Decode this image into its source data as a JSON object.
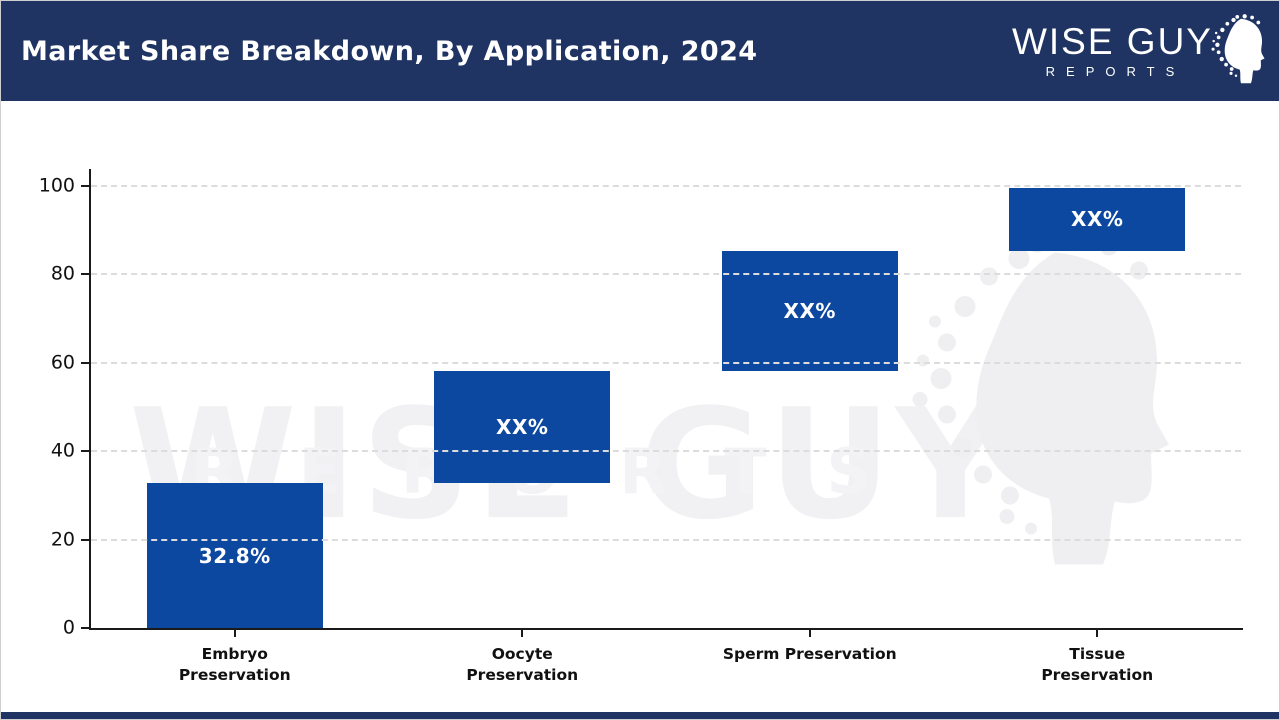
{
  "header": {
    "title": "Market Share Breakdown, By Application, 2024",
    "logo": {
      "name": "WISE GUY",
      "tagline": "REPORTS"
    },
    "background_color": "#1f3463"
  },
  "watermark": {
    "name": "WISE GUY",
    "tagline": "REPORTS"
  },
  "chart_data": {
    "type": "bar",
    "subtype": "waterfall",
    "title": "Market Share Breakdown, By Application, 2024",
    "categories": [
      "Embryo\nPreservation",
      "Oocyte\nPreservation",
      "Sperm Preservation",
      "Tissue\nPreservation"
    ],
    "segments": [
      {
        "category": "Embryo Preservation",
        "start": 0,
        "end": 32.8,
        "label": "32.8%"
      },
      {
        "category": "Oocyte Preservation",
        "start": 32.8,
        "end": 58.2,
        "label": "XX%"
      },
      {
        "category": "Sperm Preservation",
        "start": 58.2,
        "end": 85.3,
        "label": "XX%"
      },
      {
        "category": "Tissue Preservation",
        "start": 85.3,
        "end": 99.6,
        "label": "XX%"
      }
    ],
    "ylim": [
      0,
      100
    ],
    "yticks": [
      0,
      20,
      40,
      60,
      80,
      100
    ],
    "grid": {
      "horizontal": true,
      "style": "dashed",
      "above_bars": true
    },
    "legend": "none",
    "bar_color": "#0d48a0",
    "bar_label_color": "#ffffff",
    "axis_color": "#1a1a1a"
  }
}
